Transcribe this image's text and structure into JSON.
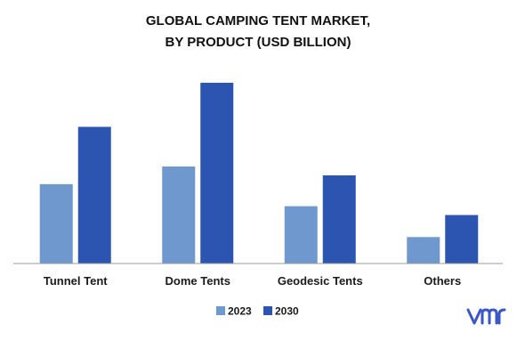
{
  "colors": {
    "series_2023": "#6F98CF",
    "series_2030": "#2B55B0",
    "axis": "#9A9A9A",
    "logo": "#3A56C8"
  },
  "logo": {
    "text": "vmr",
    "icon": "vmr-logo"
  },
  "chart_data": {
    "type": "bar",
    "title": [
      "GLOBAL CAMPING TENT MARKET,",
      "BY PRODUCT (USD BILLION)"
    ],
    "categories": [
      "Tunnel Tent",
      "Dome Tents",
      "Geodesic Tents",
      "Others"
    ],
    "series": [
      {
        "name": "2023",
        "values": [
          0.9,
          1.1,
          0.65,
          0.3
        ]
      },
      {
        "name": "2030",
        "values": [
          1.55,
          2.05,
          1.0,
          0.55
        ]
      }
    ],
    "xlabel": "",
    "ylabel": "",
    "ylim": [
      0,
      2.1
    ],
    "grid": false,
    "legend": "bottom-center"
  }
}
